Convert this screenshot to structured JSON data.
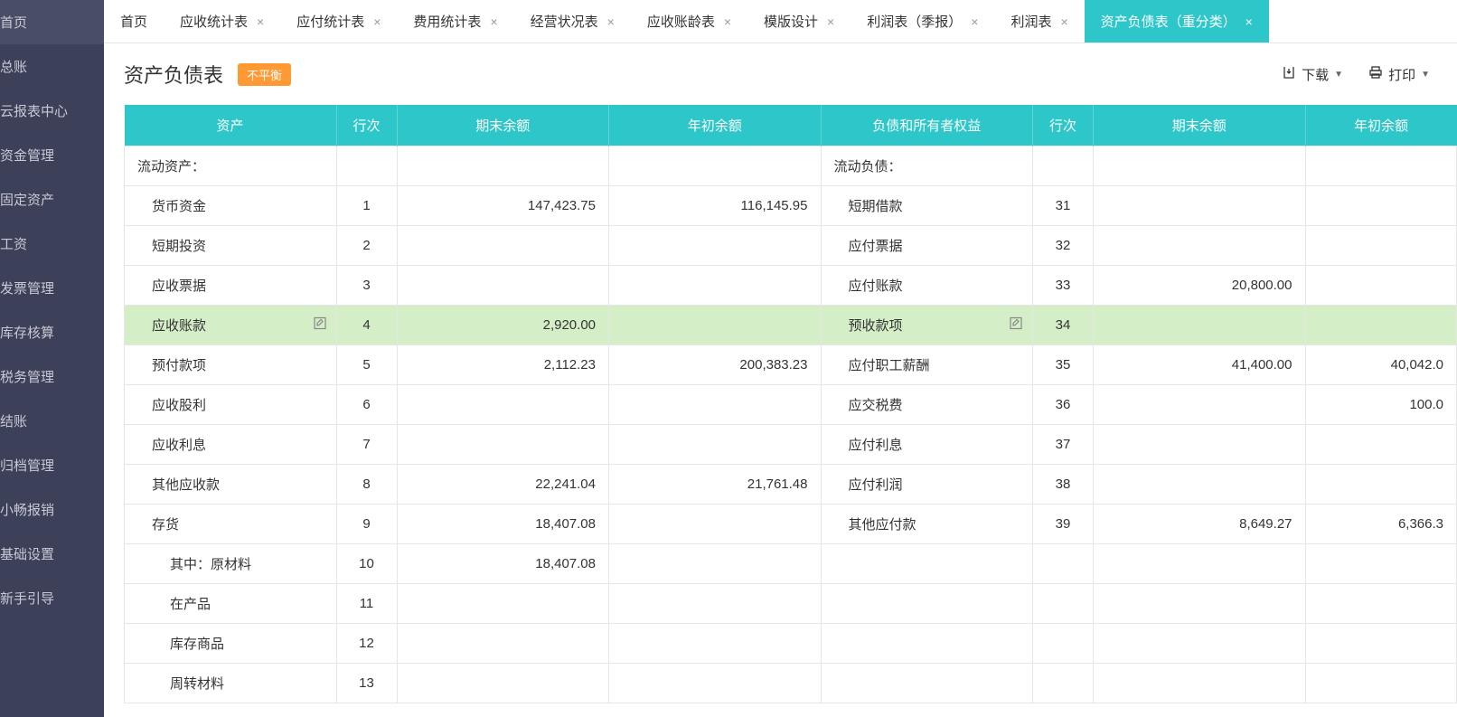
{
  "sidebar": {
    "items": [
      {
        "label": "首页"
      },
      {
        "label": "总账"
      },
      {
        "label": "云报表中心"
      },
      {
        "label": "资金管理"
      },
      {
        "label": "固定资产"
      },
      {
        "label": "工资"
      },
      {
        "label": "发票管理"
      },
      {
        "label": "库存核算"
      },
      {
        "label": "税务管理"
      },
      {
        "label": "结账"
      },
      {
        "label": "归档管理"
      },
      {
        "label": "小畅报销"
      },
      {
        "label": "基础设置"
      },
      {
        "label": "新手引导"
      }
    ]
  },
  "tabs": {
    "items": [
      {
        "label": "首页",
        "closable": false,
        "active": false
      },
      {
        "label": "应收统计表",
        "closable": true,
        "active": false
      },
      {
        "label": "应付统计表",
        "closable": true,
        "active": false
      },
      {
        "label": "费用统计表",
        "closable": true,
        "active": false
      },
      {
        "label": "经营状况表",
        "closable": true,
        "active": false
      },
      {
        "label": "应收账龄表",
        "closable": true,
        "active": false
      },
      {
        "label": "模版设计",
        "closable": true,
        "active": false
      },
      {
        "label": "利润表（季报）",
        "closable": true,
        "active": false
      },
      {
        "label": "利润表",
        "closable": true,
        "active": false
      },
      {
        "label": "资产负债表（重分类）",
        "closable": true,
        "active": true
      }
    ]
  },
  "header": {
    "title": "资产负债表",
    "badge": "不平衡",
    "download": "下载",
    "print": "打印"
  },
  "table": {
    "columns": [
      "资产",
      "行次",
      "期末余额",
      "年初余额",
      "负债和所有者权益",
      "行次",
      "期末余额",
      "年初余额"
    ],
    "rows": [
      {
        "asset_label": "流动资产：",
        "asset_indent": 0,
        "row1": "",
        "end1": "",
        "begin1": "",
        "liab_label": "流动负债：",
        "liab_indent": 0,
        "row2": "",
        "end2": "",
        "begin2": "",
        "highlight": false,
        "edit": false
      },
      {
        "asset_label": "货币资金",
        "asset_indent": 1,
        "row1": "1",
        "end1": "147,423.75",
        "begin1": "116,145.95",
        "liab_label": "短期借款",
        "liab_indent": 1,
        "row2": "31",
        "end2": "",
        "begin2": "",
        "highlight": false,
        "edit": false
      },
      {
        "asset_label": "短期投资",
        "asset_indent": 1,
        "row1": "2",
        "end1": "",
        "begin1": "",
        "liab_label": "应付票据",
        "liab_indent": 1,
        "row2": "32",
        "end2": "",
        "begin2": "",
        "highlight": false,
        "edit": false
      },
      {
        "asset_label": "应收票据",
        "asset_indent": 1,
        "row1": "3",
        "end1": "",
        "begin1": "",
        "liab_label": "应付账款",
        "liab_indent": 1,
        "row2": "33",
        "end2": "20,800.00",
        "begin2": "",
        "highlight": false,
        "edit": false
      },
      {
        "asset_label": "应收账款",
        "asset_indent": 1,
        "row1": "4",
        "end1": "2,920.00",
        "begin1": "",
        "liab_label": "预收款项",
        "liab_indent": 1,
        "row2": "34",
        "end2": "",
        "begin2": "",
        "highlight": true,
        "edit": true
      },
      {
        "asset_label": "预付款项",
        "asset_indent": 1,
        "row1": "5",
        "end1": "2,112.23",
        "begin1": "200,383.23",
        "liab_label": "应付职工薪酬",
        "liab_indent": 1,
        "row2": "35",
        "end2": "41,400.00",
        "begin2": "40,042.0",
        "highlight": false,
        "edit": false
      },
      {
        "asset_label": "应收股利",
        "asset_indent": 1,
        "row1": "6",
        "end1": "",
        "begin1": "",
        "liab_label": "应交税费",
        "liab_indent": 1,
        "row2": "36",
        "end2": "",
        "begin2": "100.0",
        "highlight": false,
        "edit": false
      },
      {
        "asset_label": "应收利息",
        "asset_indent": 1,
        "row1": "7",
        "end1": "",
        "begin1": "",
        "liab_label": "应付利息",
        "liab_indent": 1,
        "row2": "37",
        "end2": "",
        "begin2": "",
        "highlight": false,
        "edit": false
      },
      {
        "asset_label": "其他应收款",
        "asset_indent": 1,
        "row1": "8",
        "end1": "22,241.04",
        "begin1": "21,761.48",
        "liab_label": "应付利润",
        "liab_indent": 1,
        "row2": "38",
        "end2": "",
        "begin2": "",
        "highlight": false,
        "edit": false
      },
      {
        "asset_label": "存货",
        "asset_indent": 1,
        "row1": "9",
        "end1": "18,407.08",
        "begin1": "",
        "liab_label": "其他应付款",
        "liab_indent": 1,
        "row2": "39",
        "end2": "8,649.27",
        "begin2": "6,366.3",
        "highlight": false,
        "edit": false
      },
      {
        "asset_label": "其中：原材料",
        "asset_indent": 2,
        "row1": "10",
        "end1": "18,407.08",
        "begin1": "",
        "liab_label": "",
        "liab_indent": 1,
        "row2": "",
        "end2": "",
        "begin2": "",
        "highlight": false,
        "edit": false
      },
      {
        "asset_label": "在产品",
        "asset_indent": 2,
        "row1": "11",
        "end1": "",
        "begin1": "",
        "liab_label": "",
        "liab_indent": 1,
        "row2": "",
        "end2": "",
        "begin2": "",
        "highlight": false,
        "edit": false
      },
      {
        "asset_label": "库存商品",
        "asset_indent": 2,
        "row1": "12",
        "end1": "",
        "begin1": "",
        "liab_label": "",
        "liab_indent": 1,
        "row2": "",
        "end2": "",
        "begin2": "",
        "highlight": false,
        "edit": false
      },
      {
        "asset_label": "周转材料",
        "asset_indent": 2,
        "row1": "13",
        "end1": "",
        "begin1": "",
        "liab_label": "",
        "liab_indent": 1,
        "row2": "",
        "end2": "",
        "begin2": "",
        "highlight": false,
        "edit": false
      }
    ]
  },
  "colors": {
    "sidebar_bg": "#3d4059",
    "sidebar_text": "#c8c9d4",
    "accent": "#2ec7c9",
    "badge_bg": "#ff9933",
    "highlight_bg": "#d4efc8",
    "border": "#e6e6e6"
  }
}
